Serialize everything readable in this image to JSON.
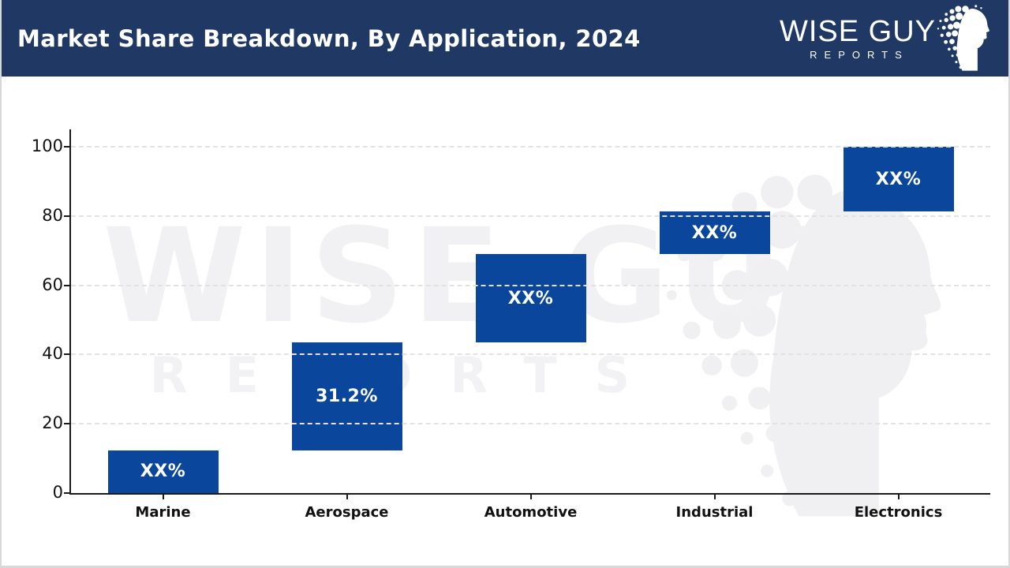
{
  "header": {
    "title": "Market Share Breakdown, By Application, 2024",
    "logo": {
      "line1": "WISE GUY",
      "line2": "REPORTS"
    }
  },
  "watermark": {
    "line1": "WISE GUY",
    "line2": "REPORTS"
  },
  "colors": {
    "header_bg": "#203864",
    "bar": "#0A469B",
    "grid": "#E2E2E2",
    "axis": "#1A1A1A",
    "bar_label": "#FFFFFF",
    "watermark": "#F1F1F3",
    "page_border": "#D8D8D8"
  },
  "chart_data": {
    "type": "bar",
    "variant": "floating-segment-column (each bar stacks on top of the previous, waterfall style)",
    "title": "Market Share Breakdown, By Application, 2024",
    "categories": [
      "Marine",
      "Aerospace",
      "Automotive",
      "Industrial",
      "Electronics"
    ],
    "segments": [
      {
        "category": "Marine",
        "start": 0,
        "end": 12.3,
        "label": "XX%"
      },
      {
        "category": "Aerospace",
        "start": 12.3,
        "end": 43.5,
        "label": "31.2%"
      },
      {
        "category": "Automotive",
        "start": 43.5,
        "end": 68.9,
        "label": "XX%"
      },
      {
        "category": "Industrial",
        "start": 68.9,
        "end": 81.2,
        "label": "XX%"
      },
      {
        "category": "Electronics",
        "start": 81.2,
        "end": 100,
        "label": "XX%"
      }
    ],
    "y_ticks": [
      0,
      20,
      40,
      60,
      80,
      100
    ],
    "ylim": [
      0,
      105
    ],
    "xlabel": "",
    "ylabel": "",
    "grid": "horizontal dashed, drawn above bars",
    "legend": "none"
  }
}
